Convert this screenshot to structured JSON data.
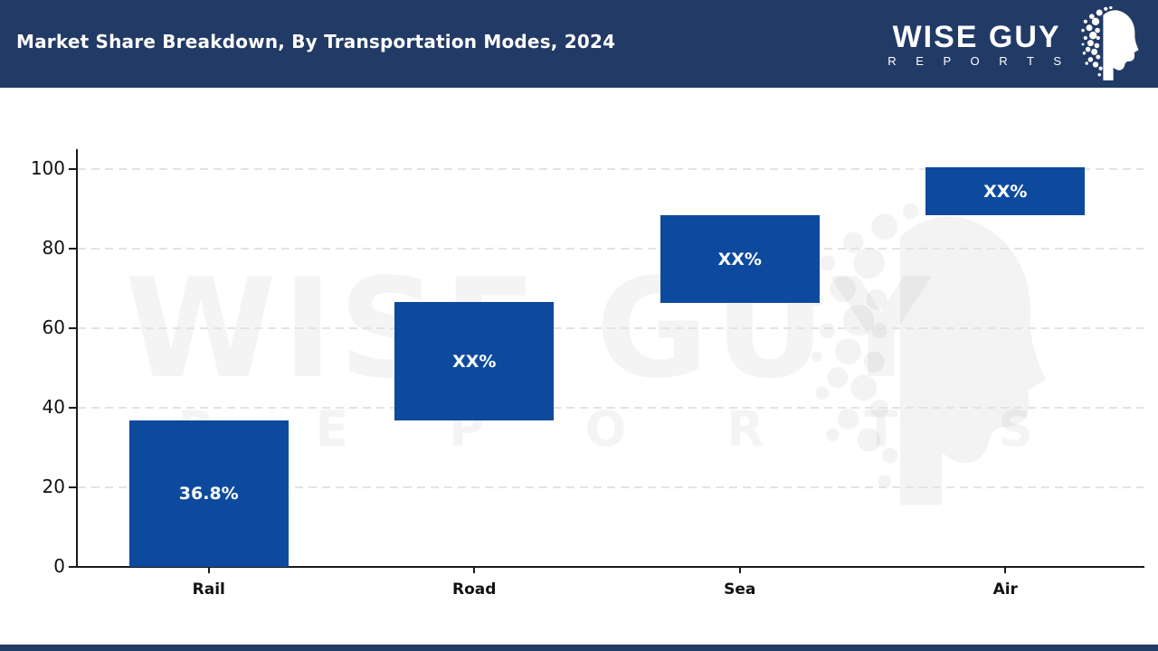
{
  "header": {
    "title": "Market Share Breakdown, By Transportation Modes, 2024",
    "logo": {
      "line1": "WISE GUY",
      "line2": "REPORTS"
    }
  },
  "watermark": {
    "line1": "WISE GUY",
    "line2": "REPORTS"
  },
  "footer": {},
  "colors": {
    "header_bg": "#223a66",
    "footer_bg": "#223a66",
    "bar": "#0d4a9e",
    "bar_label": "#ffffff",
    "axis": "#1a1a1a",
    "grid": "#e3e3e3",
    "tick_label": "#111111"
  },
  "chart_data": {
    "type": "waterfall",
    "title": "Market Share Breakdown, By Transportation Modes, 2024",
    "categories": [
      "Rail",
      "Road",
      "Sea",
      "Air"
    ],
    "segments": [
      {
        "category": "Rail",
        "start": 0,
        "end": 36.8,
        "label": "36.8%"
      },
      {
        "category": "Road",
        "start": 36.8,
        "end": 66.5,
        "label": "XX%"
      },
      {
        "category": "Sea",
        "start": 66.4,
        "end": 88.3,
        "label": "XX%"
      },
      {
        "category": "Air",
        "start": 88.3,
        "end": 100.4,
        "label": "XX%"
      }
    ],
    "yticks": [
      0,
      20,
      40,
      60,
      80,
      100
    ],
    "ylim": [
      0,
      105
    ],
    "xlabel": "",
    "ylabel": "",
    "grid": {
      "axis": "y",
      "style": "dashed"
    },
    "legend": "none",
    "bar_color": "#0d4a9e",
    "bar_label_color": "#ffffff"
  }
}
